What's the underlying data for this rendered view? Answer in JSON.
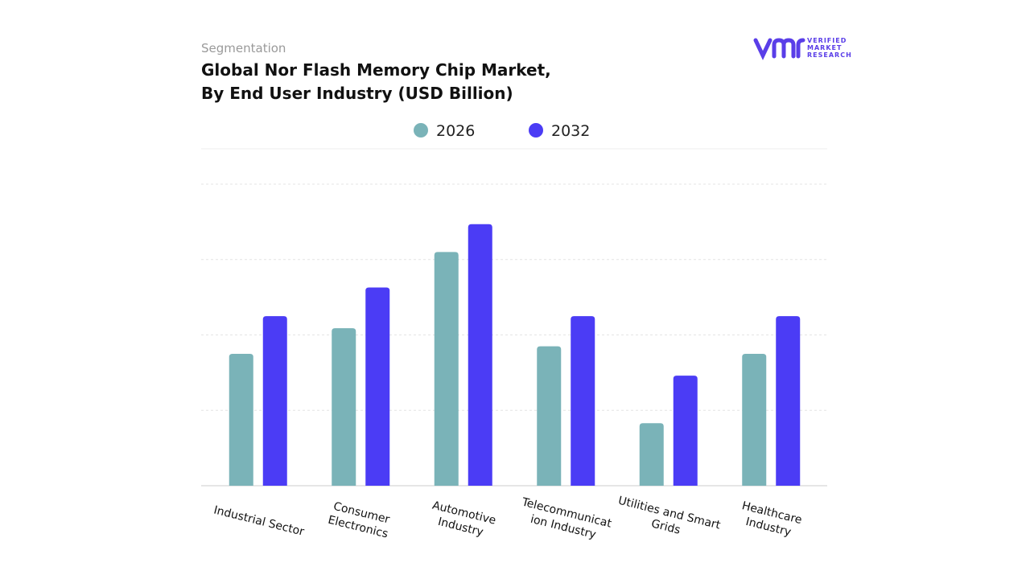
{
  "header": {
    "kicker": "Segmentation",
    "title": [
      "Global Nor Flash Memory Chip Market,",
      "By End User Industry (USD Billion)"
    ],
    "logo": [
      "VERIFIED",
      "MARKET",
      "RESEARCH"
    ]
  },
  "chart_data": {
    "type": "bar",
    "categories": [
      [
        "Industrial Sector"
      ],
      [
        "Consumer",
        "Electronics"
      ],
      [
        "Automotive",
        "Industry"
      ],
      [
        "Telecommunicat",
        "ion Industry"
      ],
      [
        "Utilities and Smart",
        "Grids"
      ],
      [
        "Healthcare",
        "Industry"
      ]
    ],
    "series": [
      {
        "name": "2026",
        "color": "#7ab3b8",
        "values": [
          1.75,
          2.09,
          3.1,
          1.85,
          0.83,
          1.75
        ]
      },
      {
        "name": "2032",
        "color": "#4b3cf5",
        "values": [
          2.25,
          2.63,
          3.47,
          2.25,
          1.46,
          2.25
        ]
      }
    ],
    "ylim": [
      0,
      4
    ],
    "yticks": [
      1,
      2,
      3,
      4
    ],
    "grid": true
  }
}
